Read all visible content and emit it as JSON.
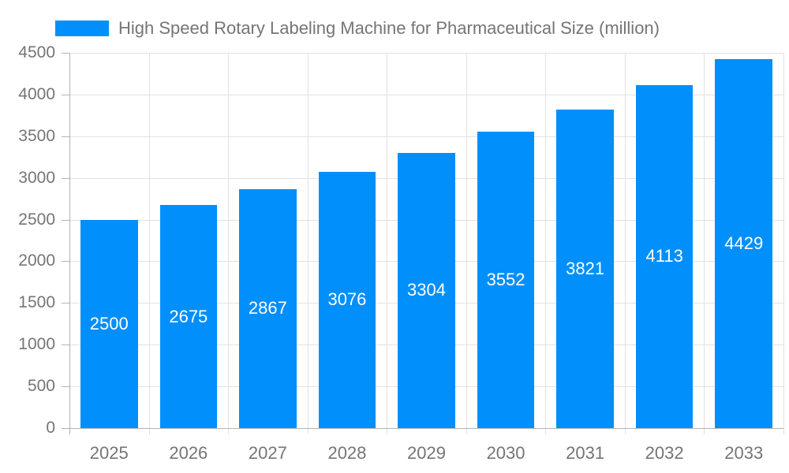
{
  "legend": {
    "label": "High Speed Rotary Labeling Machine for Pharmaceutical Size (million)",
    "swatch_color": "#008FFB"
  },
  "chart_data": {
    "type": "bar",
    "title": "High Speed Rotary Labeling Machine for Pharmaceutical Size (million)",
    "categories": [
      "2025",
      "2026",
      "2027",
      "2028",
      "2029",
      "2030",
      "2031",
      "2032",
      "2033"
    ],
    "values": [
      2500,
      2675,
      2867,
      3076,
      3304,
      3552,
      3821,
      4113,
      4429
    ],
    "value_labels": [
      "2500",
      "2675",
      "2867",
      "3076",
      "3304",
      "3552",
      "3821",
      "4113",
      "4429"
    ],
    "xlabel": "",
    "ylabel": "",
    "ylim": [
      0,
      4500
    ],
    "ytick_step": 500,
    "yticks": [
      0,
      500,
      1000,
      1500,
      2000,
      2500,
      3000,
      3500,
      4000,
      4500
    ],
    "grid": true,
    "legend_position": "top-left",
    "colors": {
      "bar": "#008FFB",
      "bar_value_text": "#ffffff",
      "gridline": "#e2e2e2",
      "axis_line": "#b3b3b3",
      "axis_text": "#757575",
      "background": "#ffffff"
    }
  }
}
